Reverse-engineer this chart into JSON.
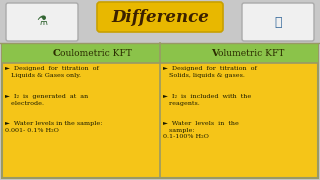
{
  "title": "Difference",
  "title_bg": "#E8B800",
  "title_color": "#3B2000",
  "header_bg": "#8BC34A",
  "header_color": "#2B2B00",
  "body_bg": "#F5C518",
  "body_color": "#1A1A00",
  "col1_header": "Coulometric KFT",
  "col2_header": "Volumetric KFT",
  "col1_header_C": "C",
  "col1_header_rest": "oulometric KFT",
  "col2_header_V": "V",
  "col2_header_rest": "olumetric KFT",
  "col1_points": [
    "►  Designed  for  titration  of\n   Liquids & Gases only.",
    "►  I₂  is  generated  at  an\n   electrode.",
    "►  Water levels in the sample:\n0.001- 0.1% H₂O"
  ],
  "col2_points": [
    "►  Designed  for  titration  of\n   Solids, liquids & gases.",
    "►  I₂  is  included  with  the\n   reagents.",
    "►  Water  levels  in  the\n   sample:\n0.1-100% H₂O"
  ],
  "border_color": "#999966",
  "outer_bg": "#c8c8c8",
  "top_bg": "#c8c8c8",
  "img_box_color": "#aaaaaa",
  "img_box_bg": "#f0f0f0"
}
